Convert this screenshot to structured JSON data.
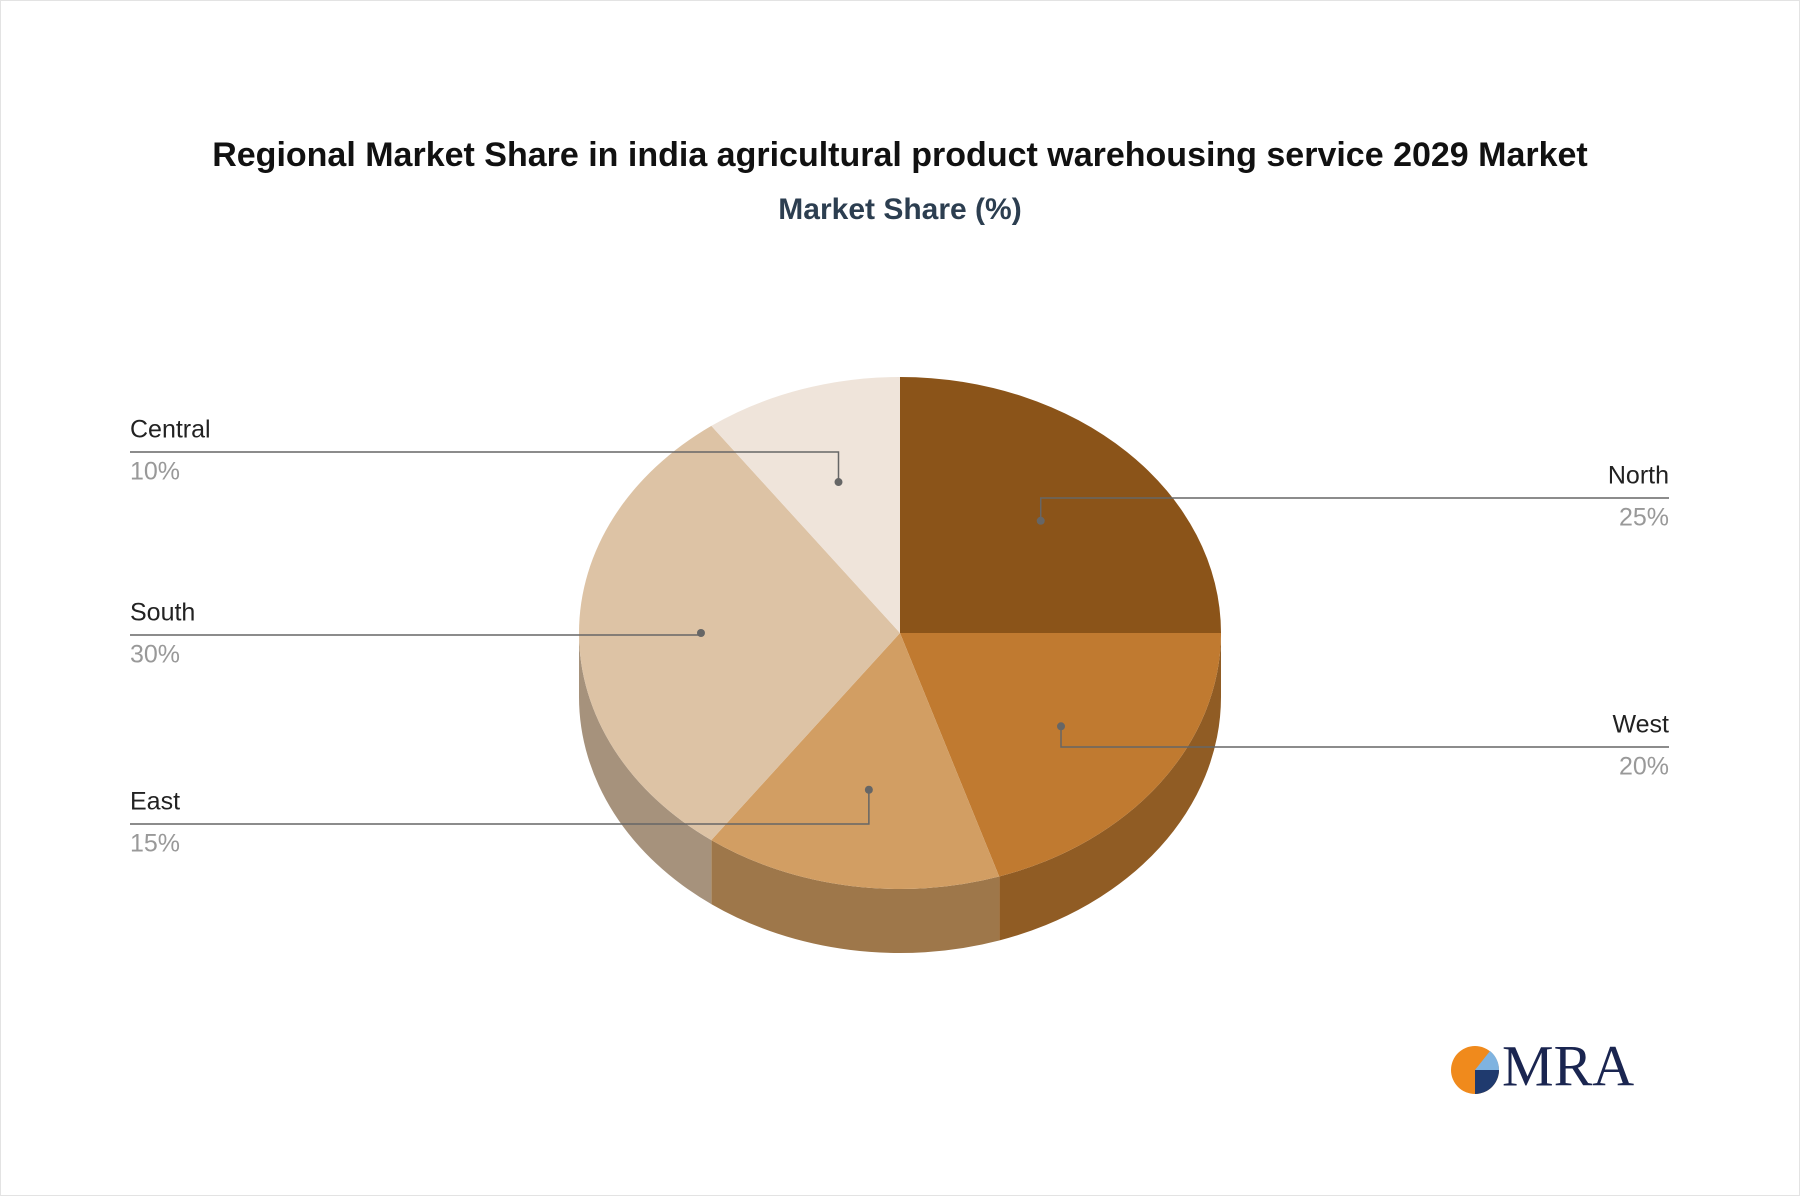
{
  "chart_data": {
    "type": "pie",
    "title": "Regional Market Share in india agricultural product warehousing service 2029 Market",
    "subtitle": "Market Share (%)",
    "categories": [
      "North",
      "West",
      "East",
      "South",
      "Central"
    ],
    "values": [
      25,
      20,
      15,
      30,
      10
    ],
    "value_labels": [
      "25%",
      "20%",
      "15%",
      "30%",
      "10%"
    ],
    "colors": [
      "#8b5419",
      "#c07a30",
      "#d29e63",
      "#ddc3a5",
      "#efe4da"
    ]
  },
  "logo": "MRA"
}
